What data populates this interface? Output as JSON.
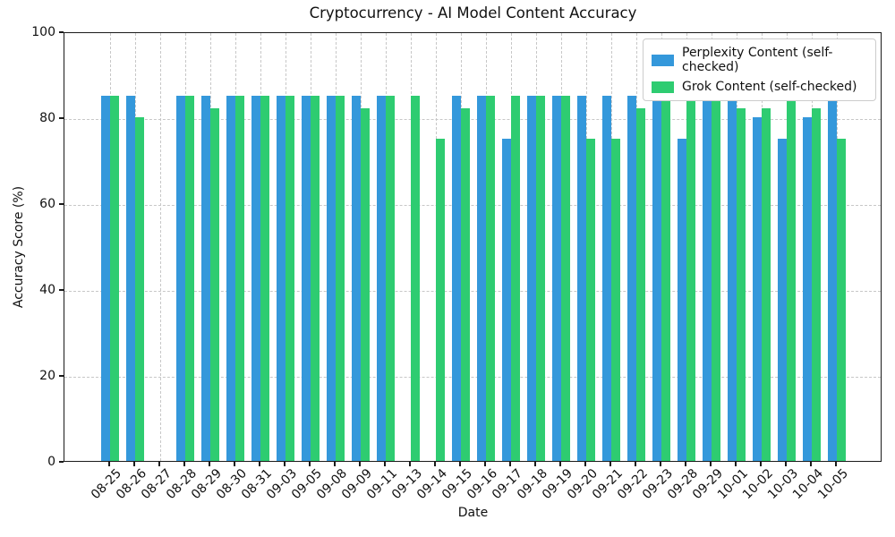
{
  "title": "Cryptocurrency - AI Model Content Accuracy",
  "colors": {
    "perplexity_blue": "#3498db",
    "grok_green": "#2ecc71",
    "grid": "#c7c7c7",
    "axis": "#1a1a1a"
  },
  "legend": {
    "position": "upper right",
    "entries": [
      {
        "label": "Perplexity Content (self-checked)",
        "color": "#3498db"
      },
      {
        "label": "Grok Content (self-checked)",
        "color": "#2ecc71"
      }
    ]
  },
  "chart_data": {
    "type": "bar",
    "title": "Cryptocurrency - AI Model Content Accuracy",
    "xlabel": "Date",
    "ylabel": "Accuracy Score (%)",
    "ylim": [
      0,
      100
    ],
    "y_ticks": [
      0,
      20,
      40,
      60,
      80,
      100
    ],
    "grid": true,
    "legend_position": "upper right",
    "categories": [
      "08-25",
      "08-26",
      "08-27",
      "08-28",
      "08-29",
      "08-30",
      "08-31",
      "09-03",
      "09-05",
      "09-08",
      "09-09",
      "09-11",
      "09-13",
      "09-14",
      "09-15",
      "09-16",
      "09-17",
      "09-18",
      "09-19",
      "09-20",
      "09-21",
      "09-22",
      "09-23",
      "09-28",
      "09-29",
      "10-01",
      "10-02",
      "10-03",
      "10-04",
      "10-05"
    ],
    "series": [
      {
        "name": "Perplexity Content (self-checked)",
        "key": "perplexity",
        "color": "#3498db",
        "values": [
          85,
          85,
          null,
          85,
          85,
          85,
          85,
          85,
          85,
          85,
          85,
          85,
          null,
          null,
          85,
          85,
          75,
          85,
          85,
          85,
          85,
          85,
          85,
          75,
          85,
          85,
          80,
          75,
          80,
          85
        ]
      },
      {
        "name": "Grok Content (self-checked)",
        "key": "grok",
        "color": "#2ecc71",
        "values": [
          85,
          80,
          null,
          85,
          82,
          85,
          85,
          85,
          85,
          85,
          82,
          85,
          85,
          75,
          82,
          85,
          85,
          85,
          85,
          75,
          75,
          82,
          85,
          85,
          85,
          82,
          82,
          85,
          82,
          75
        ]
      }
    ]
  }
}
